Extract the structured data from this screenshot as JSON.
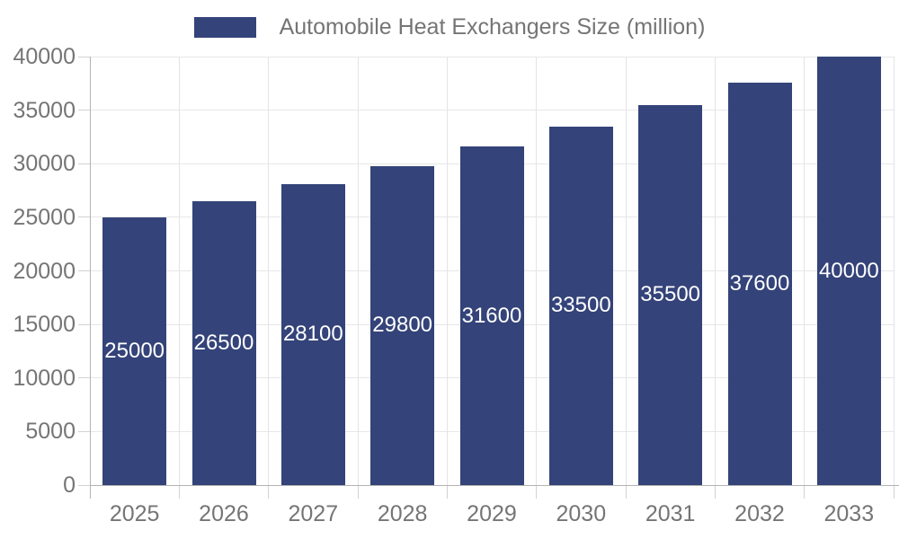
{
  "legend": {
    "label": "Automobile Heat Exchangers Size (million)",
    "swatch_color": "#344379"
  },
  "chart_data": {
    "type": "bar",
    "title": "",
    "series_name": "Automobile Heat Exchangers Size (million)",
    "categories": [
      "2025",
      "2026",
      "2027",
      "2028",
      "2029",
      "2030",
      "2031",
      "2032",
      "2033"
    ],
    "values": [
      25000,
      26500,
      28100,
      29800,
      31600,
      33500,
      35500,
      37600,
      40000
    ],
    "value_labels": [
      "25000",
      "26500",
      "28100",
      "29800",
      "31600",
      "33500",
      "35500",
      "37600",
      "40000"
    ],
    "xlabel": "",
    "ylabel": "",
    "ylim": [
      0,
      40000
    ],
    "ytick_step": 5000,
    "y_tick_labels": [
      "0",
      "5000",
      "10000",
      "15000",
      "20000",
      "25000",
      "30000",
      "35000",
      "40000"
    ],
    "grid": true,
    "legend_position": "top",
    "bar_color": "#344379",
    "value_label_color": "#ffffff",
    "axis_label_color": "#757575"
  }
}
